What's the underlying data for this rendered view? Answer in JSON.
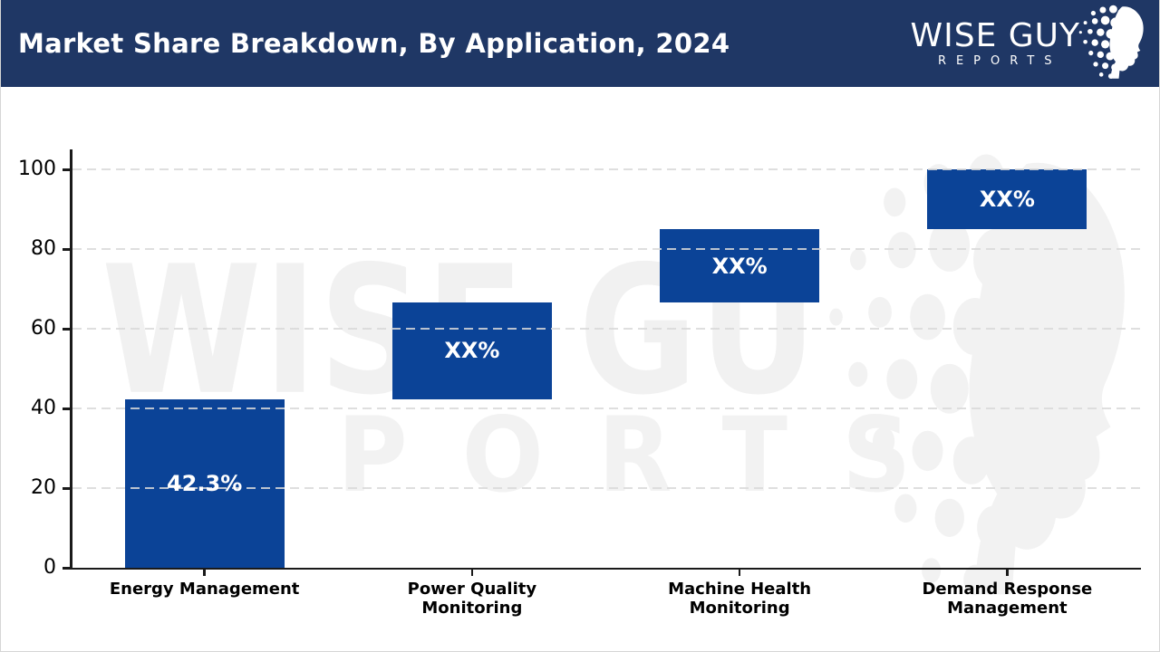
{
  "header": {
    "title": "Market Share Breakdown, By Application, 2024",
    "logo": {
      "line1": "WISE GUY",
      "line2": "REPORTS"
    }
  },
  "watermark": {
    "line1": "WISE GU",
    "line2": "PORTS"
  },
  "chart_data": {
    "type": "bar",
    "variant": "waterfall",
    "title": "Market Share Breakdown, By Application, 2024",
    "xlabel": "",
    "ylabel": "",
    "categories": [
      "Energy Management",
      "Power Quality Monitoring",
      "Machine Health Monitoring",
      "Demand Response Management"
    ],
    "category_labels": [
      "Energy Management",
      "Power Quality\nMonitoring",
      "Machine Health\nMonitoring",
      "Demand Response\nManagement"
    ],
    "segments": [
      {
        "category": "Energy Management",
        "start": 0,
        "end": 42.3,
        "label": "42.3%"
      },
      {
        "category": "Power Quality Monitoring",
        "start": 42.3,
        "end": 66.6,
        "label": "XX%"
      },
      {
        "category": "Machine Health Monitoring",
        "start": 66.6,
        "end": 84.9,
        "label": "XX%"
      },
      {
        "category": "Demand Response Management",
        "start": 84.9,
        "end": 100,
        "label": "XX%"
      }
    ],
    "yticks": [
      0,
      20,
      40,
      60,
      80,
      100
    ],
    "ylim": [
      0,
      105
    ],
    "grid": "horizontal-dashed",
    "legend": "none",
    "colors": {
      "bar": "#0b4397",
      "bar_label": "#ffffff",
      "header_bg": "#1f3765",
      "gridline": "#d9d9d9",
      "axis": "#1a1a1a",
      "watermark": "#f1f1f1"
    }
  }
}
